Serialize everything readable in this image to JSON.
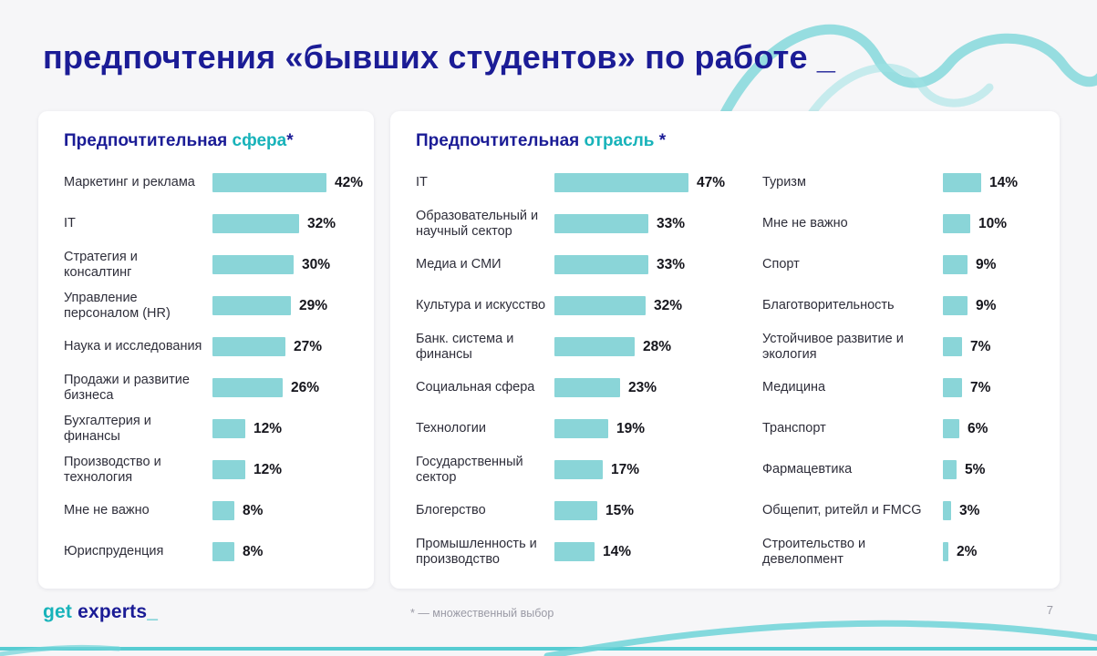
{
  "page": {
    "title": "предпочтения «бывших студентов» по работе _"
  },
  "cards": {
    "left": {
      "title_main": "Предпочтительная ",
      "title_accent": "сфера",
      "title_suffix": "*"
    },
    "right": {
      "title_main": "Предпочтительная ",
      "title_accent": "отрасль",
      "title_suffix": " *"
    }
  },
  "footer": {
    "logo_part1": "get",
    "logo_part2": " experts",
    "logo_underscore": "_",
    "footnote": "* — множественный выбор",
    "page_number": "7"
  },
  "colors": {
    "bar_teal": "#8ad5d8",
    "accent_teal": "#18b3ba",
    "title_navy": "#1b1c96",
    "background": "#f6f6f8"
  },
  "chart_data": [
    {
      "type": "bar",
      "orientation": "horizontal",
      "title": "Предпочтительная сфера*",
      "unit": "%",
      "xlim": [
        0,
        50
      ],
      "categories": [
        "Маркетинг и реклама",
        "IT",
        "Стратегия и консалтинг",
        "Управление персоналом (HR)",
        "Наука и исследования",
        "Продажи и развитие бизнеса",
        "Бухгалтерия и финансы",
        "Производство и технология",
        "Мне не важно",
        "Юриспруденция"
      ],
      "values": [
        42,
        32,
        30,
        29,
        27,
        26,
        12,
        12,
        8,
        8
      ]
    },
    {
      "type": "bar",
      "orientation": "horizontal",
      "title": "Предпочтительная отрасль *",
      "unit": "%",
      "xlim": [
        0,
        50
      ],
      "layout": {
        "columns": 2,
        "items_per_column": 10
      },
      "categories": [
        "IT",
        "Образовательный и научный сектор",
        "Медиа и СМИ",
        "Культура и искусство",
        "Банк. система и финансы",
        "Социальная сфера",
        "Технологии",
        "Государственный сектор",
        "Блогерство",
        "Промышленность и производство",
        "Туризм",
        "Мне не важно",
        "Спорт",
        "Благотворительность",
        "Устойчивое развитие и экология",
        "Медицина",
        "Транспорт",
        "Фармацевтика",
        "Общепит, ритейл и FMCG",
        "Строительство и девелопмент"
      ],
      "values": [
        47,
        33,
        33,
        32,
        28,
        23,
        19,
        17,
        15,
        14,
        14,
        10,
        9,
        9,
        7,
        7,
        6,
        5,
        3,
        2
      ]
    }
  ]
}
